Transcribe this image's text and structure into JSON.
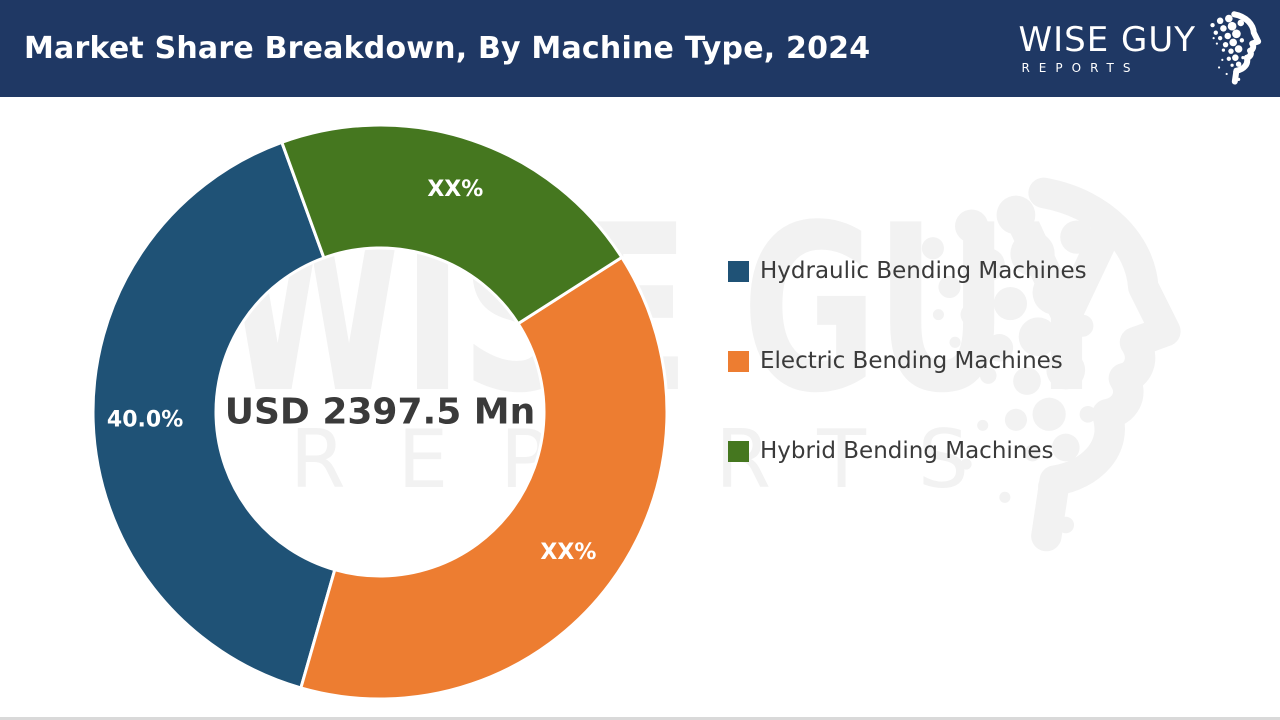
{
  "header": {
    "title": "Market Share Breakdown, By Machine Type, 2024",
    "logo": {
      "line1": "WISE GUY",
      "line2": "REPORTS",
      "icon": "face-profile-dots-icon"
    }
  },
  "chart_data": {
    "type": "pie",
    "subtype": "donut",
    "title": "Market Share Breakdown, By Machine Type, 2024",
    "center_label": "USD 2397.5 Mn",
    "start_angle_deg": 110,
    "direction": "counterclockwise",
    "inner_radius_ratio": 0.57,
    "legend_position": "right",
    "slices": [
      {
        "name": "Hydraulic Bending Machines",
        "label": "40.0%",
        "value": 40.0,
        "color": "#1F5276"
      },
      {
        "name": "Electric Bending Machines",
        "label": "XX%",
        "value": 38.5,
        "color": "#ED7D31"
      },
      {
        "name": "Hybrid Bending Machines",
        "label": "XX%",
        "value": 21.5,
        "color": "#45771F"
      }
    ]
  },
  "watermark": {
    "line1": "WISE GUY",
    "line2": "REPORTS"
  },
  "colors": {
    "header_bg": "#1F3864",
    "text_dark": "#3A3A3A",
    "watermark": "#F2F2F2",
    "bottom_line": "#D9D9D9"
  }
}
